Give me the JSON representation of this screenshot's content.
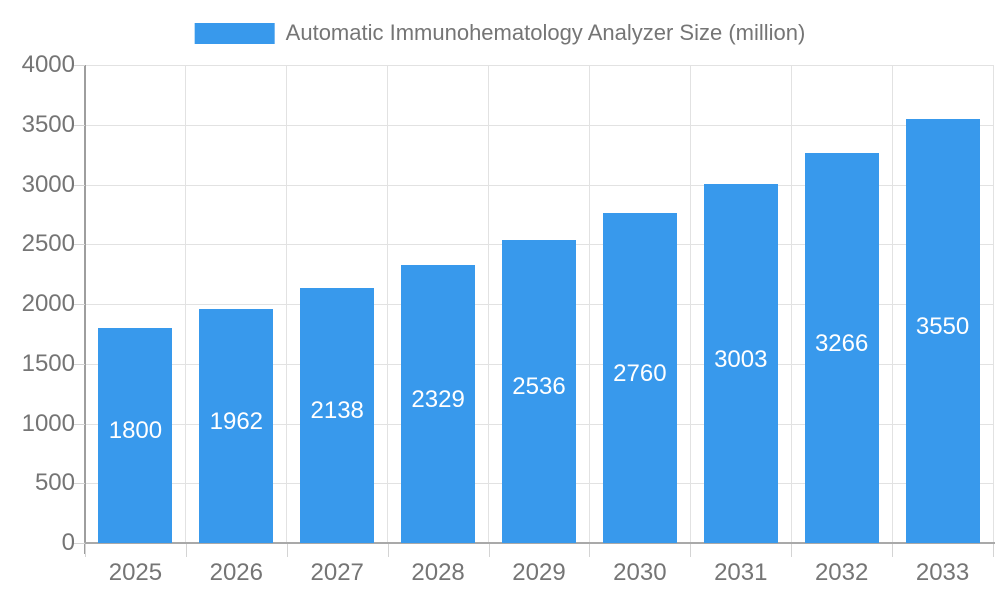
{
  "legend": {
    "series_label": "Automatic Immunohematology Analyzer Size (million)",
    "swatch_color": "#3899EC"
  },
  "chart_data": {
    "type": "bar",
    "title": "Automatic Immunohematology Analyzer Size (million)",
    "categories": [
      "2025",
      "2026",
      "2027",
      "2028",
      "2029",
      "2030",
      "2031",
      "2032",
      "2033"
    ],
    "values": [
      1800,
      1962,
      2138,
      2329,
      2536,
      2760,
      3003,
      3266,
      3550
    ],
    "series": [
      {
        "name": "Automatic Immunohematology Analyzer Size (million)",
        "values": [
          1800,
          1962,
          2138,
          2329,
          2536,
          2760,
          3003,
          3266,
          3550
        ]
      }
    ],
    "xlabel": "",
    "ylabel": "",
    "ylim": [
      0,
      4000
    ],
    "yticks": [
      0,
      500,
      1000,
      1500,
      2000,
      2500,
      3000,
      3500,
      4000
    ],
    "grid": true,
    "legend_position": "top",
    "value_labels": "inside-bar",
    "colors": {
      "bar": "#3899EC",
      "value_label": "#ffffff",
      "axis_text": "#757575",
      "gridline": "#e2e2e2",
      "axis_line": "#9e9e9e"
    }
  }
}
